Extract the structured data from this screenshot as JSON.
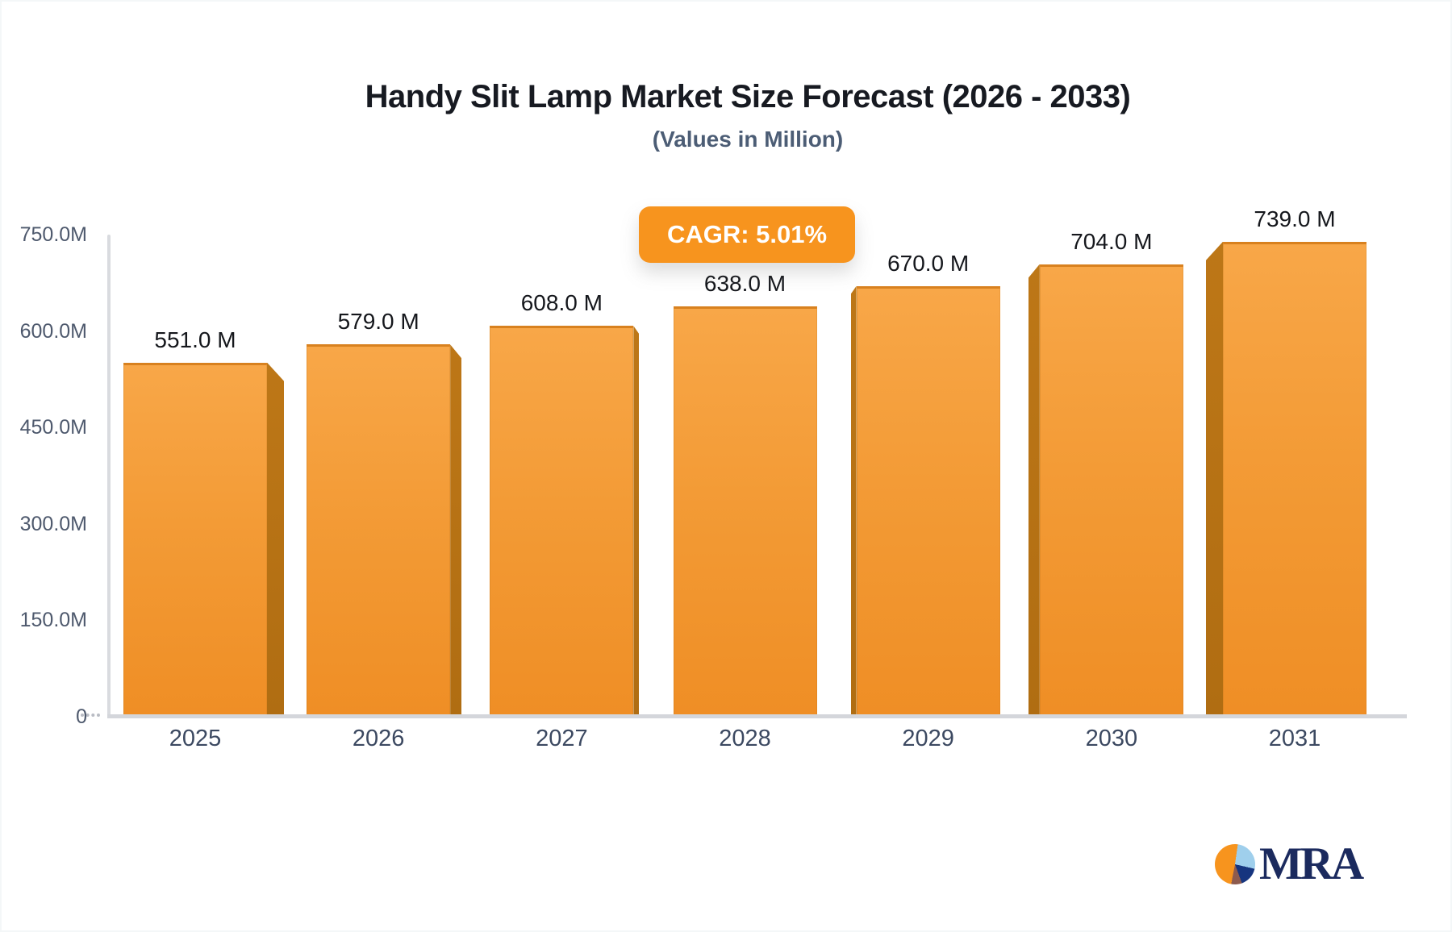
{
  "header": {
    "title": "Handy Slit Lamp Market Size Forecast (2026 - 2033)",
    "subtitle": "(Values in Million)"
  },
  "badge": {
    "label": "CAGR: 5.01%",
    "bg_color": "#f7941e",
    "text_color": "#ffffff"
  },
  "chart_data": {
    "type": "bar",
    "title": "Handy Slit Lamp Market Size Forecast (2026 - 2033)",
    "subtitle": "(Values in Million)",
    "cagr": "5.01%",
    "categories": [
      "2025",
      "2026",
      "2027",
      "2028",
      "2029",
      "2030",
      "2031"
    ],
    "values": [
      551,
      579,
      608,
      638,
      670,
      704,
      739
    ],
    "value_labels": [
      "551.0 M",
      "579.0 M",
      "608.0 M",
      "638.0 M",
      "670.0 M",
      "704.0 M",
      "739.0 M"
    ],
    "unit": "Million",
    "yticks": {
      "labels": [
        "750.0M",
        "600.0M",
        "450.0M",
        "300.0M",
        "150.0M",
        "0"
      ],
      "values": [
        750,
        600,
        450,
        300,
        150,
        0
      ]
    },
    "ylim": [
      0,
      750
    ],
    "xlabel": "",
    "ylabel": "",
    "grid": false,
    "legend_position": "none",
    "bar_colors": {
      "face_top": "#f8a748",
      "face_bottom": "#ef8e25",
      "side_face": "#b5701a"
    }
  },
  "logo": {
    "text": "MRA",
    "text_color": "#1b2a5e",
    "pie_colors": {
      "orange": "#f7941e",
      "light_blue": "#9fcfec",
      "navy": "#16357f",
      "brown": "#8d5b4e"
    }
  }
}
